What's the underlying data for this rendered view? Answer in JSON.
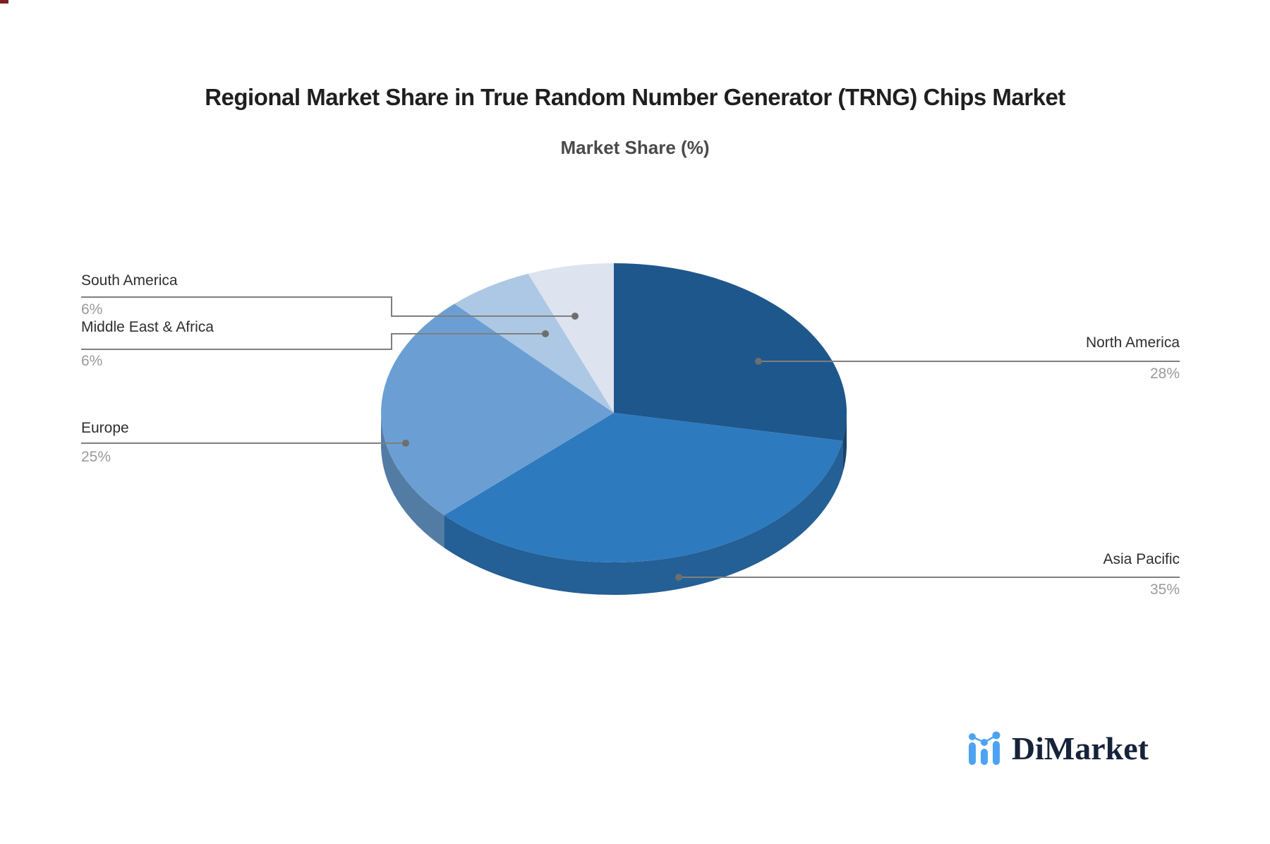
{
  "title": "Regional Market Share in True Random Number Generator (TRNG) Chips Market",
  "subtitle": "Market Share (%)",
  "logo": {
    "text": "DiMarket",
    "icon": "bar-chart-trend-icon"
  },
  "colors": {
    "background": "#ffffff",
    "title_text": "#1f1f1f",
    "subtitle_text": "#4a4a4a",
    "label_text": "#2e2e2e",
    "value_text": "#9a9a9a",
    "leader_line": "#7f7f7f",
    "leader_dot": "#6e6e6e",
    "logo_text": "#16233b",
    "logo_icon": "#4da3f2"
  },
  "chart_data": {
    "type": "pie",
    "style": "3d",
    "title": "Regional Market Share in True Random Number Generator (TRNG) Chips Market",
    "subtitle": "Market Share (%)",
    "unit": "%",
    "start_angle": "12-o-clock",
    "direction": "clockwise",
    "labels_position": "outside-with-leader-lines",
    "legend": "none",
    "slices": [
      {
        "label": "North America",
        "value": 28,
        "display": "28%",
        "color": "#1e578c",
        "side": "right"
      },
      {
        "label": "Asia Pacific",
        "value": 35,
        "display": "35%",
        "color": "#2e7abf",
        "side": "right"
      },
      {
        "label": "Europe",
        "value": 25,
        "display": "25%",
        "color": "#6b9fd4",
        "side": "left"
      },
      {
        "label": "Middle East & Africa",
        "value": 6,
        "display": "6%",
        "color": "#adc8e4",
        "side": "left"
      },
      {
        "label": "South America",
        "value": 6,
        "display": "6%",
        "color": "#dde4ef",
        "side": "left"
      }
    ]
  }
}
